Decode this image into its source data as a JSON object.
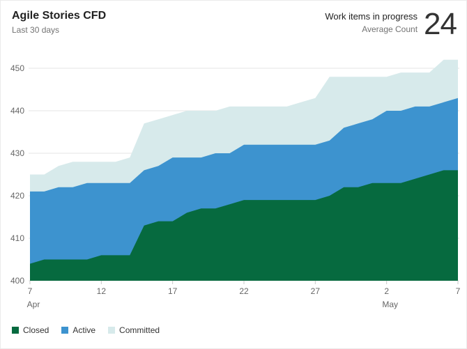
{
  "header": {
    "title": "Agile Stories CFD",
    "subtitle": "Last 30 days",
    "kpi_label": "Work items in progress",
    "kpi_sublabel": "Average Count",
    "kpi_value": "24"
  },
  "chart_data": {
    "type": "area",
    "stacked": true,
    "value_type": "cumulative_tops",
    "title": "Agile Stories CFD",
    "xlabel": "",
    "ylabel": "",
    "ylim": [
      400,
      454
    ],
    "yticks": [
      400,
      410,
      420,
      430,
      440,
      450
    ],
    "grid": true,
    "legend_position": "bottom-left",
    "x_dates": [
      "Apr 7",
      "Apr 8",
      "Apr 9",
      "Apr 10",
      "Apr 11",
      "Apr 12",
      "Apr 13",
      "Apr 14",
      "Apr 15",
      "Apr 16",
      "Apr 17",
      "Apr 18",
      "Apr 19",
      "Apr 20",
      "Apr 21",
      "Apr 22",
      "Apr 23",
      "Apr 24",
      "Apr 25",
      "Apr 26",
      "Apr 27",
      "Apr 28",
      "Apr 29",
      "Apr 30",
      "May 1",
      "May 2",
      "May 3",
      "May 4",
      "May 5",
      "May 6",
      "May 7"
    ],
    "x_ticks": [
      {
        "index": 0,
        "label": "7",
        "month": "Apr"
      },
      {
        "index": 5,
        "label": "12"
      },
      {
        "index": 10,
        "label": "17"
      },
      {
        "index": 15,
        "label": "22"
      },
      {
        "index": 20,
        "label": "27"
      },
      {
        "index": 25,
        "label": "2",
        "month": "May"
      },
      {
        "index": 30,
        "label": "7"
      }
    ],
    "series": [
      {
        "name": "Closed",
        "color": "#066a3f",
        "cumulative_values": [
          404,
          405,
          405,
          405,
          405,
          406,
          406,
          406,
          413,
          414,
          414,
          416,
          417,
          417,
          418,
          419,
          419,
          419,
          419,
          419,
          419,
          420,
          422,
          422,
          423,
          423,
          423,
          424,
          425,
          426,
          426
        ]
      },
      {
        "name": "Active",
        "color": "#3d93cf",
        "cumulative_values": [
          421,
          421,
          422,
          422,
          423,
          423,
          423,
          423,
          426,
          427,
          429,
          429,
          429,
          430,
          430,
          432,
          432,
          432,
          432,
          432,
          432,
          433,
          436,
          437,
          438,
          440,
          440,
          441,
          441,
          442,
          443
        ]
      },
      {
        "name": "Committed",
        "color": "#d7eaeb",
        "cumulative_values": [
          425,
          425,
          427,
          428,
          428,
          428,
          428,
          429,
          437,
          438,
          439,
          440,
          440,
          440,
          441,
          441,
          441,
          441,
          441,
          442,
          443,
          448,
          448,
          448,
          448,
          448,
          449,
          449,
          449,
          452,
          452
        ]
      }
    ]
  }
}
